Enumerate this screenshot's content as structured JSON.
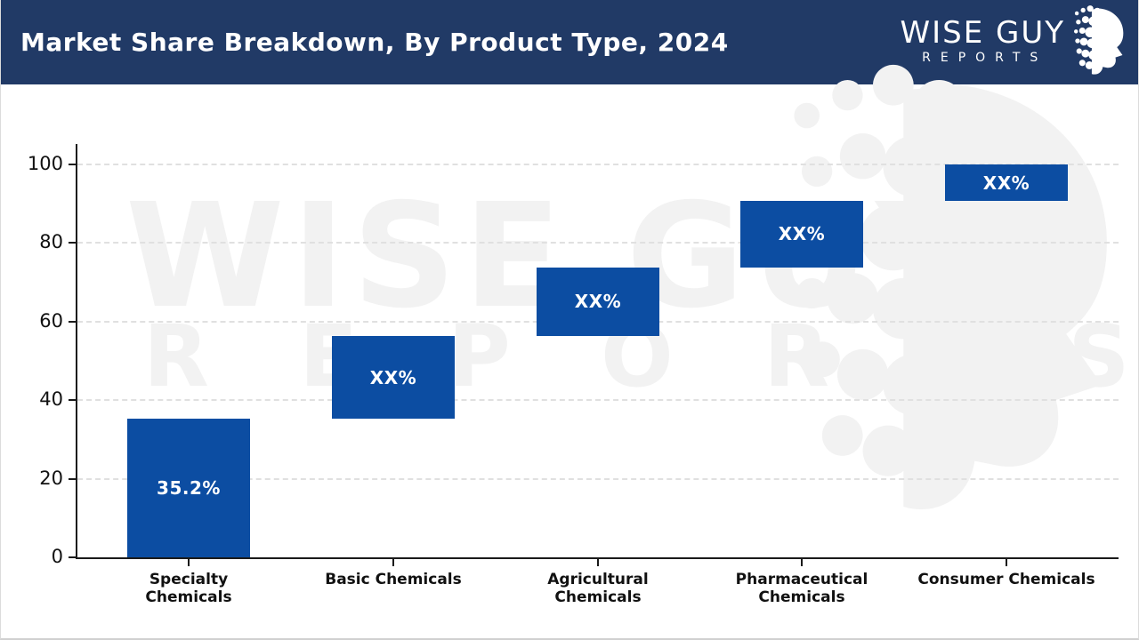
{
  "header": {
    "title": "Market Share Breakdown, By Product Type, 2024",
    "logo": {
      "line1": "WISE GUY",
      "line2": "REPORTS"
    }
  },
  "watermark": {
    "line1": "WISE GUY",
    "line2": "R E P O R T S"
  },
  "chart_data": {
    "type": "bar",
    "subtype": "waterfall",
    "title": "Market Share Breakdown, By Product Type, 2024",
    "categories": [
      "Specialty Chemicals",
      "Basic Chemicals",
      "Agricultural Chemicals",
      "Pharmaceutical Chemicals",
      "Consumer Chemicals"
    ],
    "category_lines": [
      [
        "Specialty",
        "Chemicals"
      ],
      [
        "Basic Chemicals"
      ],
      [
        "Agricultural",
        "Chemicals"
      ],
      [
        "Pharmaceutical",
        "Chemicals"
      ],
      [
        "Consumer Chemicals"
      ]
    ],
    "bars": [
      {
        "category": "Specialty Chemicals",
        "label": "35.2%",
        "start": 0,
        "end": 35.2
      },
      {
        "category": "Basic Chemicals",
        "label": "XX%",
        "start": 35.2,
        "end": 56.3
      },
      {
        "category": "Agricultural Chemicals",
        "label": "XX%",
        "start": 56.3,
        "end": 73.8
      },
      {
        "category": "Pharmaceutical Chemicals",
        "label": "XX%",
        "start": 73.8,
        "end": 90.7
      },
      {
        "category": "Consumer Chemicals",
        "label": "XX%",
        "start": 90.7,
        "end": 100
      }
    ],
    "yticks": [
      0,
      20,
      40,
      60,
      80,
      100
    ],
    "ylim": [
      0,
      105
    ],
    "xlabel": "",
    "ylabel": "",
    "grid": "horizontal-dashed",
    "legend": "none",
    "colors": {
      "bar": "#0c4da2",
      "bar_label": "#ffffff",
      "axis": "#1a1a1a",
      "grid": "#e0e0e0",
      "header_bg": "#213a66",
      "header_text": "#ffffff",
      "watermark": "#f2f2f2"
    }
  }
}
